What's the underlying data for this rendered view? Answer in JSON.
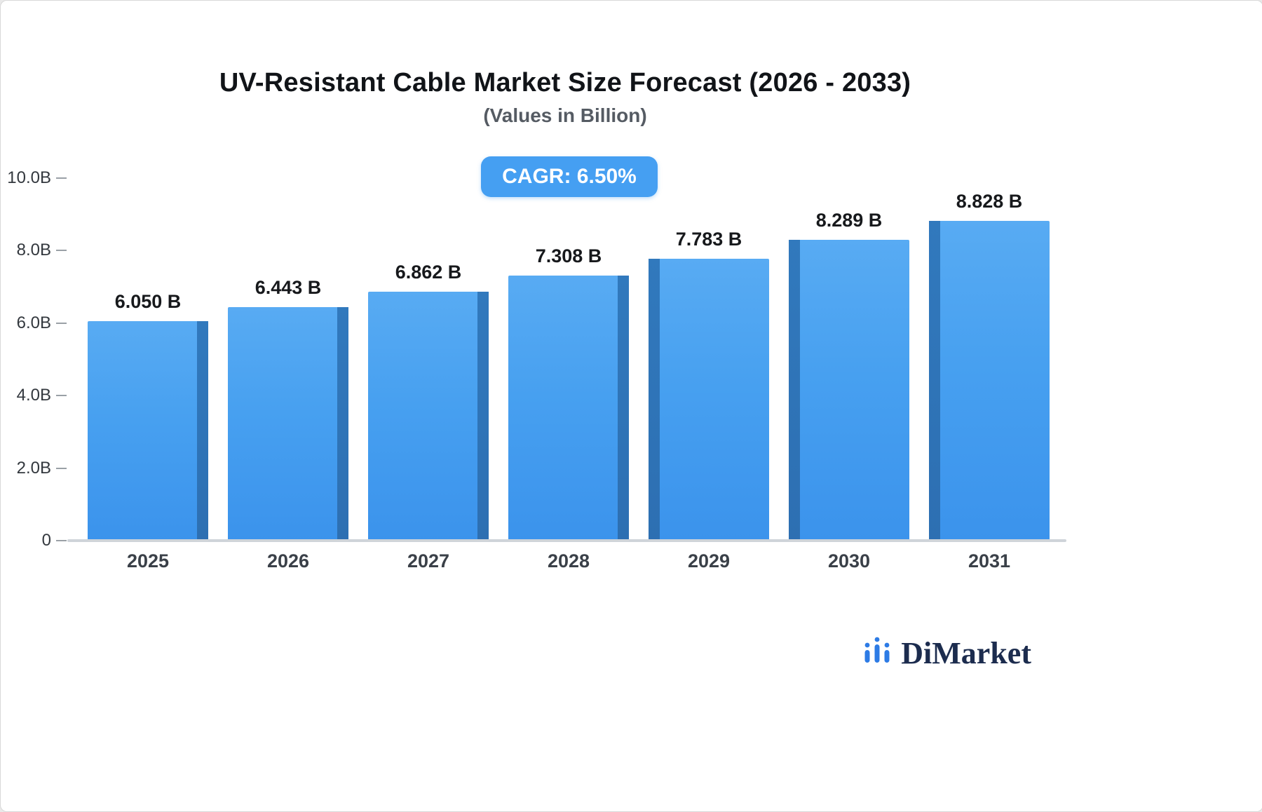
{
  "title": "UV-Resistant Cable Market Size Forecast (2026 - 2033)",
  "subtitle": "(Values in Billion)",
  "cagr_label": "CAGR: 6.50%",
  "brand": {
    "name": "DiMarket"
  },
  "chart_data": {
    "type": "bar",
    "title": "UV-Resistant Cable Market Size Forecast (2026 - 2033)",
    "subtitle": "(Values in Billion)",
    "categories": [
      "2025",
      "2026",
      "2027",
      "2028",
      "2029",
      "2030",
      "2031"
    ],
    "values": [
      6.05,
      6.443,
      6.862,
      7.308,
      7.783,
      8.289,
      8.828
    ],
    "value_labels": [
      "6.050 B",
      "6.443 B",
      "6.862 B",
      "7.308 B",
      "7.783 B",
      "8.289 B",
      "8.828 B"
    ],
    "xlabel": "",
    "ylabel": "",
    "ylim": [
      0,
      10
    ],
    "yticks": [
      {
        "value": 0,
        "label": "0"
      },
      {
        "value": 2,
        "label": "2.0B"
      },
      {
        "value": 4,
        "label": "4.0B"
      },
      {
        "value": 6,
        "label": "6.0B"
      },
      {
        "value": 8,
        "label": "8.0B"
      },
      {
        "value": 10,
        "label": "10.0B"
      }
    ],
    "grid": false,
    "legend": false,
    "annotations": [
      "CAGR: 6.50%"
    ],
    "bar_color": "#47a0f0",
    "bar_side_color": "#2d6fb2",
    "badge_color": "#459ff2"
  }
}
